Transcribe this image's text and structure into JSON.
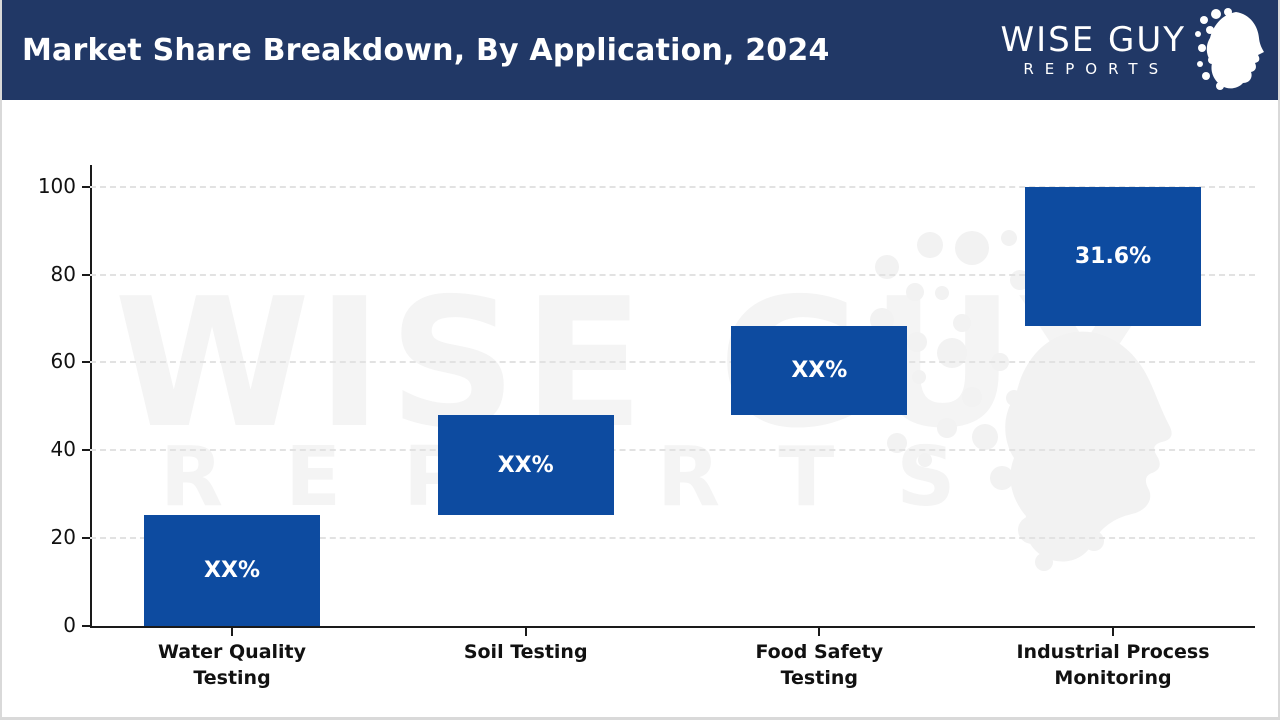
{
  "header": {
    "title": "Market Share Breakdown, By Application, 2024",
    "logo": {
      "name": "WISE GUY",
      "subname": "REPORTS"
    }
  },
  "watermark": {
    "line1": "WISE GUY",
    "line2": "REPORTS"
  },
  "colors": {
    "header_bg": "#213866",
    "bar": "#0d4ba0",
    "grid": "#e2e2e2",
    "axis": "#1a1a1a",
    "wm": "#f4f4f4"
  },
  "chart_data": {
    "type": "bar",
    "variant": "waterfall",
    "title": "Market Share Breakdown, By Application, 2024",
    "categories": [
      "Water Quality Testing",
      "Soil Testing",
      "Food Safety Testing",
      "Industrial Process Monitoring"
    ],
    "category_label_lines": [
      [
        "Water Quality",
        "Testing"
      ],
      [
        "Soil Testing"
      ],
      [
        "Food Safety",
        "Testing"
      ],
      [
        "Industrial Process",
        "Monitoring"
      ]
    ],
    "segments": [
      {
        "category": "Water Quality Testing",
        "start": 0,
        "end": 25.2,
        "value_label": "XX%"
      },
      {
        "category": "Soil Testing",
        "start": 25.2,
        "end": 48.0,
        "value_label": "XX%"
      },
      {
        "category": "Food Safety Testing",
        "start": 48.0,
        "end": 68.4,
        "value_label": "XX%"
      },
      {
        "category": "Industrial Process Monitoring",
        "start": 68.4,
        "end": 100,
        "value_label": "31.6%"
      }
    ],
    "ylim": [
      0,
      100
    ],
    "yticks": [
      0,
      20,
      40,
      60,
      80,
      100
    ],
    "grid": "horizontal-dashed",
    "legend": "none",
    "xlabel": "",
    "ylabel": ""
  }
}
